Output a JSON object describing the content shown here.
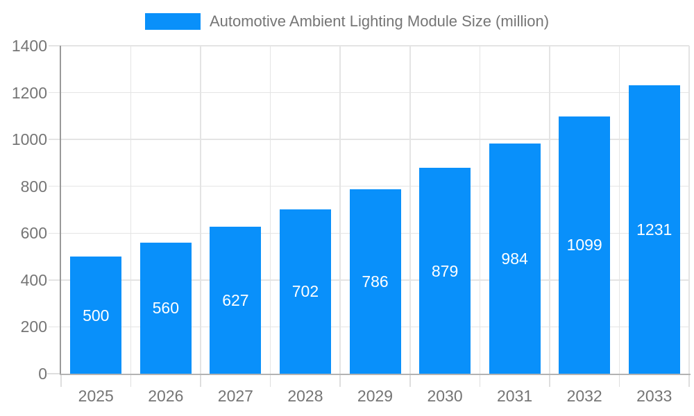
{
  "legend": {
    "label": "Automotive Ambient Lighting Module Size (million)"
  },
  "chart_data": {
    "type": "bar",
    "title": "Automotive Ambient Lighting Module Size (million)",
    "categories": [
      "2025",
      "2026",
      "2027",
      "2028",
      "2029",
      "2030",
      "2031",
      "2032",
      "2033"
    ],
    "values": [
      500,
      560,
      627,
      702,
      786,
      879,
      984,
      1099,
      1231
    ],
    "xlabel": "",
    "ylabel": "",
    "ylim": [
      0,
      1400
    ],
    "yticks": [
      0,
      200,
      400,
      600,
      800,
      1000,
      1200,
      1400
    ],
    "grid": true,
    "legend_position": "top-center",
    "value_label_position": "inside-center",
    "colors": {
      "bar": "#0990fa",
      "value_label": "#ffffff",
      "axis_text": "#757575",
      "grid_line": "#e4e4e4",
      "tick_line": "#dedede",
      "y_axis_line": "#999999",
      "x_axis_line": "#b3b3b3",
      "background": "#ffffff"
    }
  }
}
